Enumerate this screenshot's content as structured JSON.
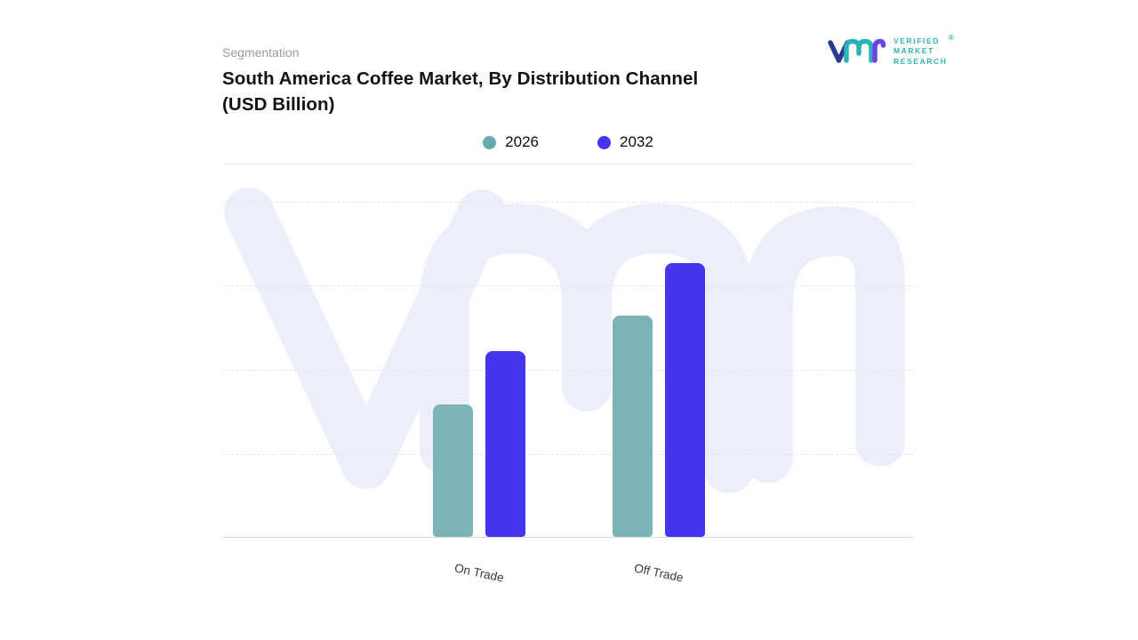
{
  "header": {
    "eyebrow": "Segmentation",
    "title": "South America Coffee Market, By Distribution Channel (USD Billion)"
  },
  "logo": {
    "brand_lines": [
      "VERIFIED",
      "MARKET",
      "RESEARCH"
    ],
    "registered_mark": "®",
    "mark_navy": "#2b3990",
    "mark_teal": "#2db3b7",
    "mark_purple": "#6b45e4",
    "text_teal": "#2fb3b8",
    "reg_orange": "#f05a28"
  },
  "legend": [
    {
      "label": "2026",
      "color": "#67aaad"
    },
    {
      "label": "2032",
      "color": "#4634ee"
    }
  ],
  "chart_data": {
    "type": "bar",
    "title": "South America Coffee Market, By Distribution Channel (USD Billion)",
    "categories": [
      "On Trade",
      "Off Trade"
    ],
    "series": [
      {
        "name": "2026",
        "color": "#7cb3b5",
        "values": [
          1.5,
          2.5
        ]
      },
      {
        "name": "2032",
        "color": "#4635ef",
        "values": [
          2.1,
          3.1
        ]
      }
    ],
    "xlabel": "",
    "ylabel": "",
    "ylim": [
      0,
      3.8
    ],
    "y_axis_ticks_visible": false,
    "grid": "horizontal-dashed",
    "legend_position": "top"
  },
  "watermark_text": "vmr",
  "watermark_color": "#edeefb"
}
